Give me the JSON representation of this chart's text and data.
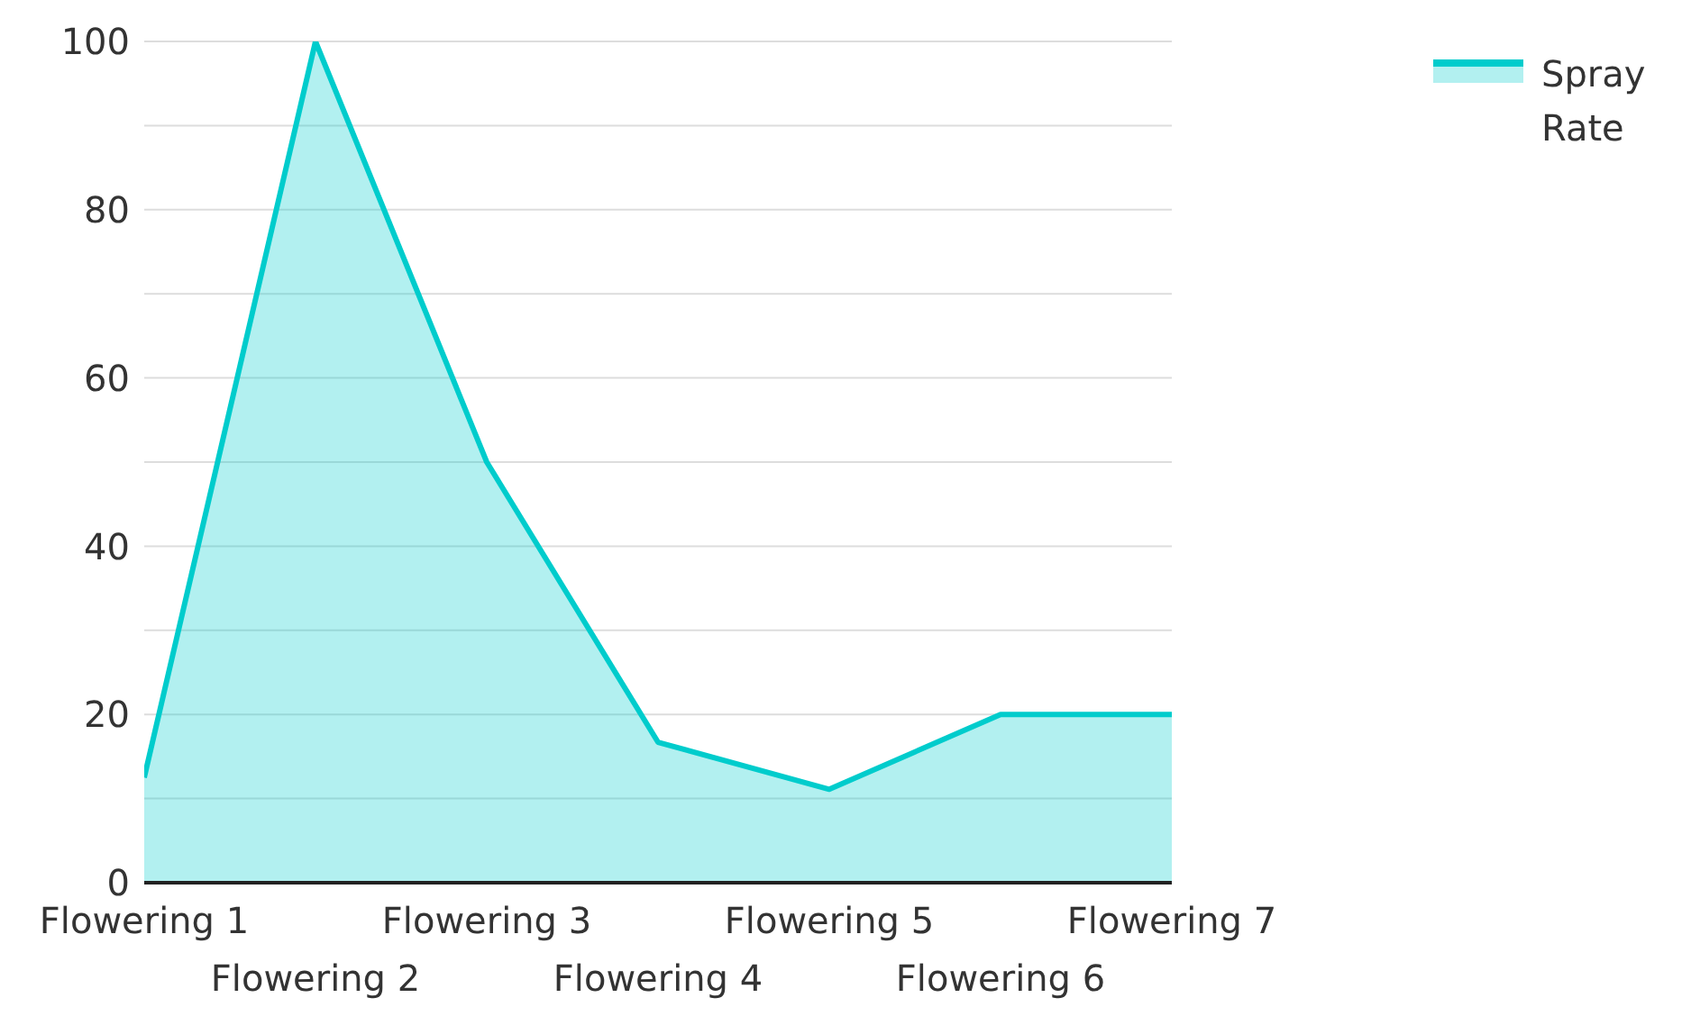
{
  "chart_data": {
    "type": "area",
    "categories": [
      "Flowering 1",
      "Flowering 2",
      "Flowering 3",
      "Flowering 4",
      "Flowering 5",
      "Flowering 6",
      "Flowering 7"
    ],
    "series": [
      {
        "name": "Spray Rate",
        "color": "#00cccc",
        "values": [
          12.5,
          100,
          50,
          16.7,
          11.1,
          20,
          20
        ]
      }
    ],
    "ylim": [
      0,
      100
    ],
    "yticks": [
      0,
      {
        "value": 10,
        "label": null
      },
      20,
      {
        "value": 30,
        "label": null
      },
      40,
      {
        "value": 50,
        "label": null
      },
      60,
      {
        "value": 70,
        "label": null
      },
      80,
      {
        "value": 90,
        "label": null
      },
      100
    ],
    "grid": "y",
    "legend": "top right"
  }
}
